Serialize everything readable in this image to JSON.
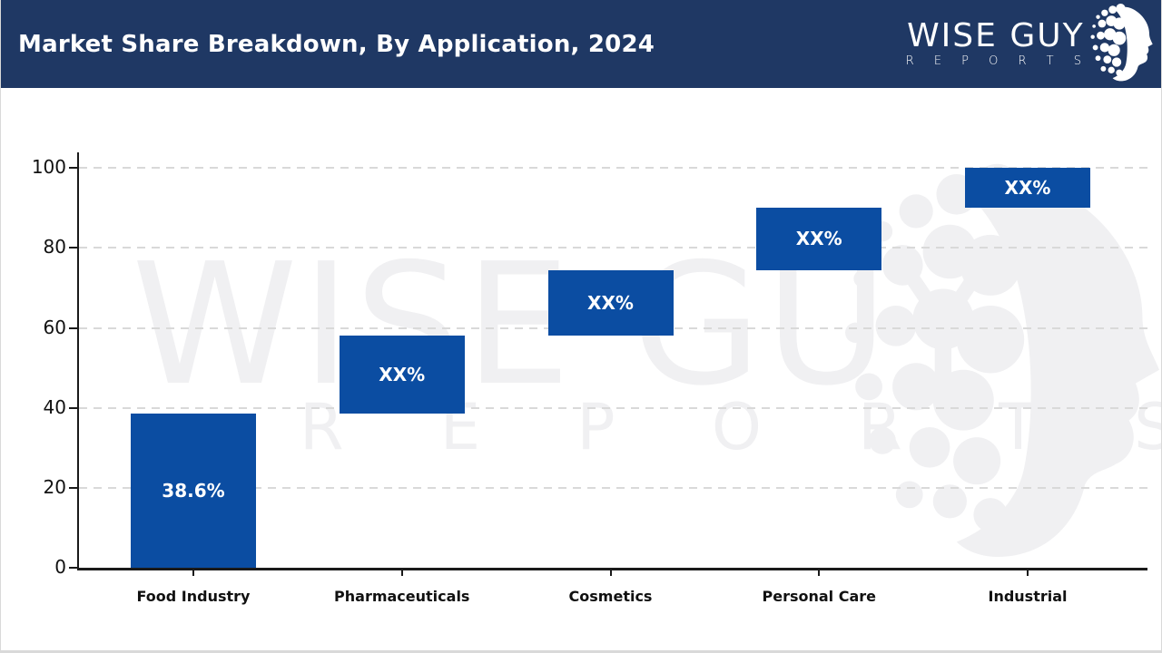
{
  "header": {
    "title": "Market Share Breakdown, By Application, 2024",
    "brand_line1": "WISE GUY",
    "brand_line2": "R E P O R T S"
  },
  "watermark": {
    "line1": "WISE GUY",
    "line2": "R E P O R T S"
  },
  "chart_data": {
    "type": "bar",
    "subtype": "waterfall",
    "title": "Market Share Breakdown, By Application, 2024",
    "categories": [
      "Food Industry",
      "Pharmaceuticals",
      "Cosmetics",
      "Personal Care",
      "Industrial"
    ],
    "segments": [
      {
        "category": "Food Industry",
        "start": 0,
        "end": 38.6,
        "label": "38.6%"
      },
      {
        "category": "Pharmaceuticals",
        "start": 38.6,
        "end": 58.0,
        "label": "XX%"
      },
      {
        "category": "Cosmetics",
        "start": 58.0,
        "end": 74.5,
        "label": "XX%"
      },
      {
        "category": "Personal Care",
        "start": 74.5,
        "end": 90.0,
        "label": "XX%"
      },
      {
        "category": "Industrial",
        "start": 90.0,
        "end": 100.0,
        "label": "XX%"
      }
    ],
    "y_ticks": [
      0,
      20,
      40,
      60,
      80,
      100
    ],
    "ylim": [
      0,
      103.9
    ],
    "grid": "horizontal-dashed",
    "legend": "none",
    "bar_color": "#0b4da2",
    "bar_label_color": "#ffffff"
  },
  "colors": {
    "header_bg": "#1f3864",
    "bar": "#0b4da2",
    "grid": "#d9d9d9",
    "axis": "#1a1a1a",
    "watermark": "#f0f0f2",
    "background": "#ffffff"
  }
}
